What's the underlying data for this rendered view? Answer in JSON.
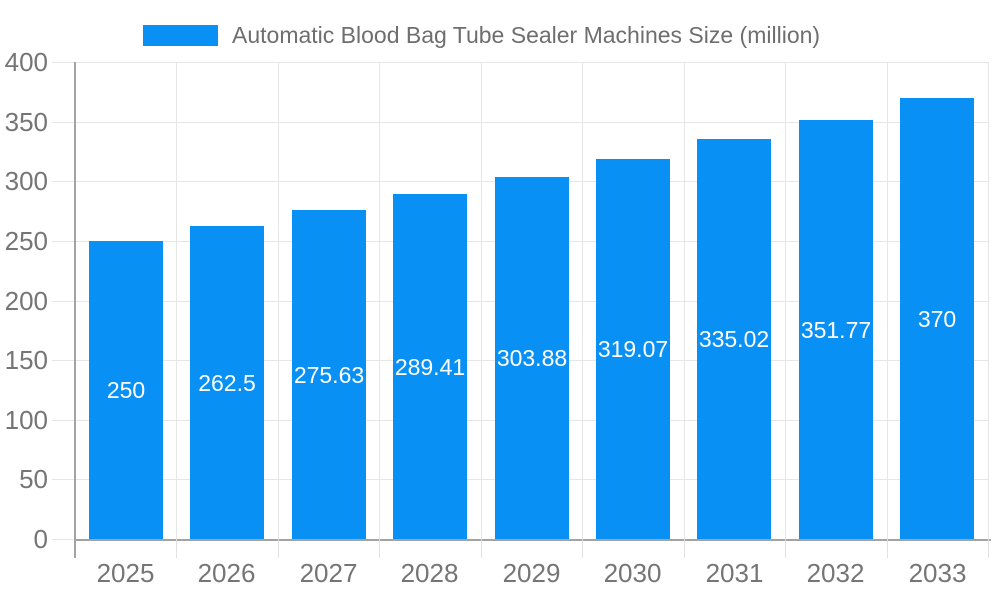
{
  "chart_data": {
    "type": "bar",
    "legend": {
      "position": "top",
      "items": [
        {
          "label": "Automatic Blood Bag Tube Sealer Machines Size (million)",
          "color": "#0990F4"
        }
      ]
    },
    "categories": [
      "2025",
      "2026",
      "2027",
      "2028",
      "2029",
      "2030",
      "2031",
      "2032",
      "2033"
    ],
    "values": [
      250,
      262.5,
      275.63,
      289.41,
      303.88,
      319.07,
      335.02,
      351.77,
      370
    ],
    "value_labels": [
      "250",
      "262.5",
      "275.63",
      "289.41",
      "303.88",
      "319.07",
      "335.02",
      "351.77",
      "370"
    ],
    "xlabel": "",
    "ylabel": "",
    "ylim": [
      0,
      400
    ],
    "ytick_interval": 50,
    "ytick_labels": [
      "0",
      "50",
      "100",
      "150",
      "200",
      "250",
      "300",
      "350",
      "400"
    ],
    "grid": true,
    "colors": {
      "bar": "#0990F4",
      "grid": "#E6E6E6",
      "axis": "#A3A3A3",
      "tick": "#E0E0E0",
      "label": "#757575",
      "legend_text": "#6E6E6E",
      "value_label": "#FFFFFF",
      "background": "#FFFFFF"
    }
  }
}
